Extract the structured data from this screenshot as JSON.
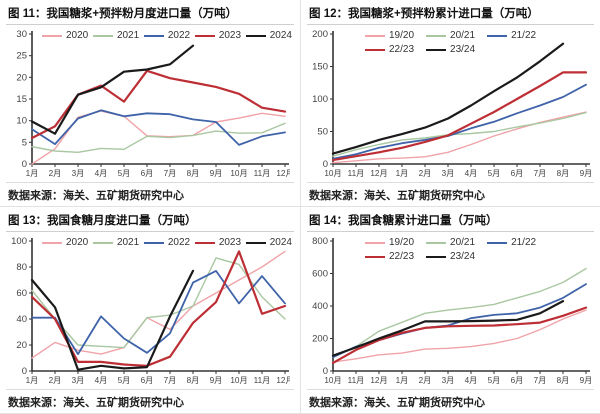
{
  "source_note": "数据来源：海关、五矿期货研究中心",
  "palette": {
    "pink": "#F0A3A8",
    "green": "#A9C7A1",
    "blue": "#3F63A9",
    "red": "#BD2E35",
    "black": "#1A1A1A"
  },
  "chart_data": [
    {
      "type": "line",
      "title": "图 11：我国糖浆+预拌粉月度进口量（万吨）",
      "ylabel": "万吨",
      "ylim": [
        0,
        30
      ],
      "yticks": [
        0,
        5,
        10,
        15,
        20,
        25,
        30
      ],
      "legend_layout": "spread",
      "categories": [
        "1月",
        "2月",
        "3月",
        "4月",
        "5月",
        "6月",
        "7月",
        "8月",
        "9月",
        "10月",
        "11月",
        "12月"
      ],
      "series": [
        {
          "name": "2020",
          "color": "#F0A3A8",
          "width": 1.4,
          "values": [
            0,
            3.5,
            10.8,
            12.2,
            11.0,
            6.5,
            6.3,
            6.6,
            9.7,
            10.6,
            11.7,
            11.0
          ]
        },
        {
          "name": "2021",
          "color": "#A9C7A1",
          "width": 1.4,
          "values": [
            4.0,
            3.0,
            2.7,
            3.6,
            3.4,
            6.4,
            6.1,
            6.6,
            7.6,
            7.1,
            7.2,
            9.4
          ]
        },
        {
          "name": "2022",
          "color": "#3F63A9",
          "width": 1.8,
          "values": [
            8.0,
            4.6,
            10.5,
            12.4,
            11.0,
            11.7,
            11.5,
            10.3,
            9.7,
            4.4,
            6.4,
            7.3
          ]
        },
        {
          "name": "2023",
          "color": "#BD2E35",
          "width": 2.2,
          "values": [
            6.0,
            8.7,
            16.0,
            18.1,
            14.4,
            21.5,
            19.8,
            18.8,
            17.8,
            16.2,
            13.0,
            12.1
          ]
        },
        {
          "name": "2024",
          "color": "#1A1A1A",
          "width": 2.2,
          "values": [
            9.8,
            7.0,
            16.0,
            17.7,
            21.3,
            21.8,
            23.0,
            27.3
          ]
        }
      ]
    },
    {
      "type": "line",
      "title": "图 12：我国糖浆+预拌粉累计进口量（万吨）",
      "ylabel": "万吨",
      "ylim": [
        0,
        200
      ],
      "yticks": [
        0,
        50,
        100,
        150,
        200
      ],
      "legend_layout": "wrap",
      "categories": [
        "10月",
        "11月",
        "12月",
        "1月",
        "2月",
        "3月",
        "4月",
        "5月",
        "6月",
        "7月",
        "8月",
        "9月"
      ],
      "series": [
        {
          "name": "19/20",
          "color": "#F0A3A8",
          "width": 1.4,
          "values": [
            2,
            5,
            8,
            9,
            11,
            18,
            30,
            43,
            54,
            64,
            72,
            80
          ]
        },
        {
          "name": "20/21",
          "color": "#A9C7A1",
          "width": 1.4,
          "values": [
            12,
            22,
            30,
            37,
            40,
            45,
            47,
            50,
            57,
            63,
            70,
            79
          ]
        },
        {
          "name": "21/22",
          "color": "#3F63A9",
          "width": 1.8,
          "values": [
            8,
            15,
            25,
            32,
            37,
            43,
            55,
            65,
            78,
            90,
            103,
            122
          ]
        },
        {
          "name": "22/23",
          "color": "#BD2E35",
          "width": 2.2,
          "values": [
            6,
            12,
            18,
            25,
            34,
            44,
            62,
            80,
            100,
            120,
            141,
            141
          ]
        },
        {
          "name": "23/24",
          "color": "#1A1A1A",
          "width": 2.2,
          "values": [
            16,
            26,
            37,
            46,
            56,
            70,
            90,
            112,
            133,
            158,
            185
          ]
        }
      ]
    },
    {
      "type": "line",
      "title": "图 13：我国食糖月度进口量（万吨）",
      "ylabel": "万吨",
      "ylim": [
        0,
        100
      ],
      "yticks": [
        0,
        20,
        40,
        60,
        80,
        100
      ],
      "legend_layout": "spread",
      "categories": [
        "1月",
        "2月",
        "3月",
        "4月",
        "5月",
        "6月",
        "7月",
        "8月",
        "9月",
        "10月",
        "11月",
        "12月"
      ],
      "series": [
        {
          "name": "2020",
          "color": "#F0A3A8",
          "width": 1.4,
          "values": [
            10,
            22,
            16,
            13,
            18,
            41,
            32,
            50,
            60,
            70,
            80,
            92
          ]
        },
        {
          "name": "2021",
          "color": "#A9C7A1",
          "width": 1.4,
          "values": [
            62,
            40,
            20,
            19,
            18,
            41,
            43,
            50,
            87,
            82,
            57,
            40
          ]
        },
        {
          "name": "2022",
          "color": "#3F63A9",
          "width": 1.8,
          "values": [
            41,
            41,
            13,
            42,
            25,
            14,
            29,
            68,
            77,
            52,
            73,
            52
          ]
        },
        {
          "name": "2023",
          "color": "#BD2E35",
          "width": 2.2,
          "values": [
            57,
            40,
            7,
            7,
            5,
            4,
            11,
            37,
            53,
            92,
            44,
            50
          ]
        },
        {
          "name": "2024",
          "color": "#1A1A1A",
          "width": 2.2,
          "values": [
            70,
            49,
            1,
            4,
            2,
            3,
            42,
            77
          ]
        }
      ]
    },
    {
      "type": "line",
      "title": "图 14：我国食糖累计进口量（万吨）",
      "ylabel": "万吨",
      "ylim": [
        0,
        800
      ],
      "yticks": [
        0,
        200,
        400,
        600,
        800
      ],
      "legend_layout": "wrap",
      "categories": [
        "10月",
        "11月",
        "12月",
        "1月",
        "2月",
        "3月",
        "4月",
        "5月",
        "6月",
        "7月",
        "8月",
        "9月"
      ],
      "series": [
        {
          "name": "19/20",
          "color": "#F0A3A8",
          "width": 1.4,
          "values": [
            55,
            75,
            100,
            110,
            135,
            140,
            150,
            170,
            200,
            255,
            320,
            375
          ]
        },
        {
          "name": "20/21",
          "color": "#A9C7A1",
          "width": 1.4,
          "values": [
            90,
            150,
            245,
            300,
            355,
            375,
            390,
            410,
            450,
            490,
            545,
            630
          ]
        },
        {
          "name": "21/22",
          "color": "#3F63A9",
          "width": 1.8,
          "values": [
            85,
            150,
            190,
            230,
            265,
            280,
            325,
            345,
            355,
            390,
            450,
            535
          ]
        },
        {
          "name": "22/23",
          "color": "#BD2E35",
          "width": 2.2,
          "values": [
            50,
            130,
            190,
            235,
            265,
            275,
            278,
            280,
            288,
            298,
            340,
            390
          ]
        },
        {
          "name": "23/24",
          "color": "#1A1A1A",
          "width": 2.2,
          "values": [
            95,
            145,
            200,
            250,
            305,
            305,
            307,
            310,
            315,
            355,
            430
          ]
        }
      ]
    }
  ]
}
